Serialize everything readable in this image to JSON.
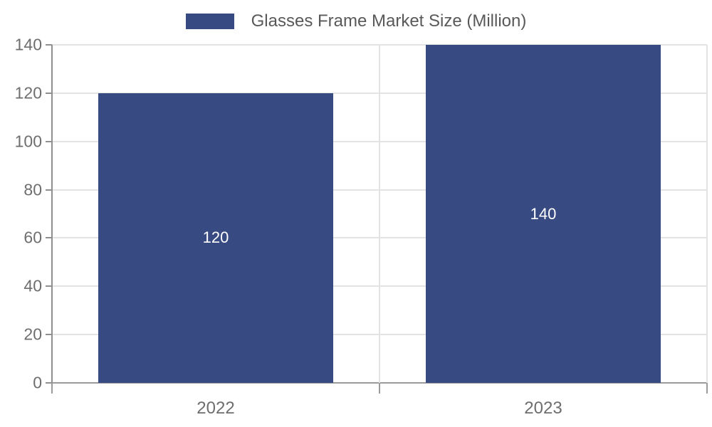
{
  "legend": {
    "label": "Glasses Frame Market Size (Million)"
  },
  "chart_data": {
    "type": "bar",
    "title": "",
    "xlabel": "",
    "ylabel": "",
    "categories": [
      "2022",
      "2023"
    ],
    "series": [
      {
        "name": "Glasses Frame Market Size (Million)",
        "values": [
          120,
          140
        ]
      }
    ],
    "data_labels": [
      "120",
      "140"
    ],
    "yticks": [
      0,
      20,
      40,
      60,
      80,
      100,
      120,
      140
    ],
    "ylim": [
      0,
      140
    ],
    "grid": true,
    "legend_position": "top",
    "bar_color": "#384A82",
    "bar_label_color": "#ffffff",
    "axis_color": "#8f8f8f",
    "gridline_color": "#e3e3e3",
    "tick_label_color": "#6e6e6e"
  }
}
